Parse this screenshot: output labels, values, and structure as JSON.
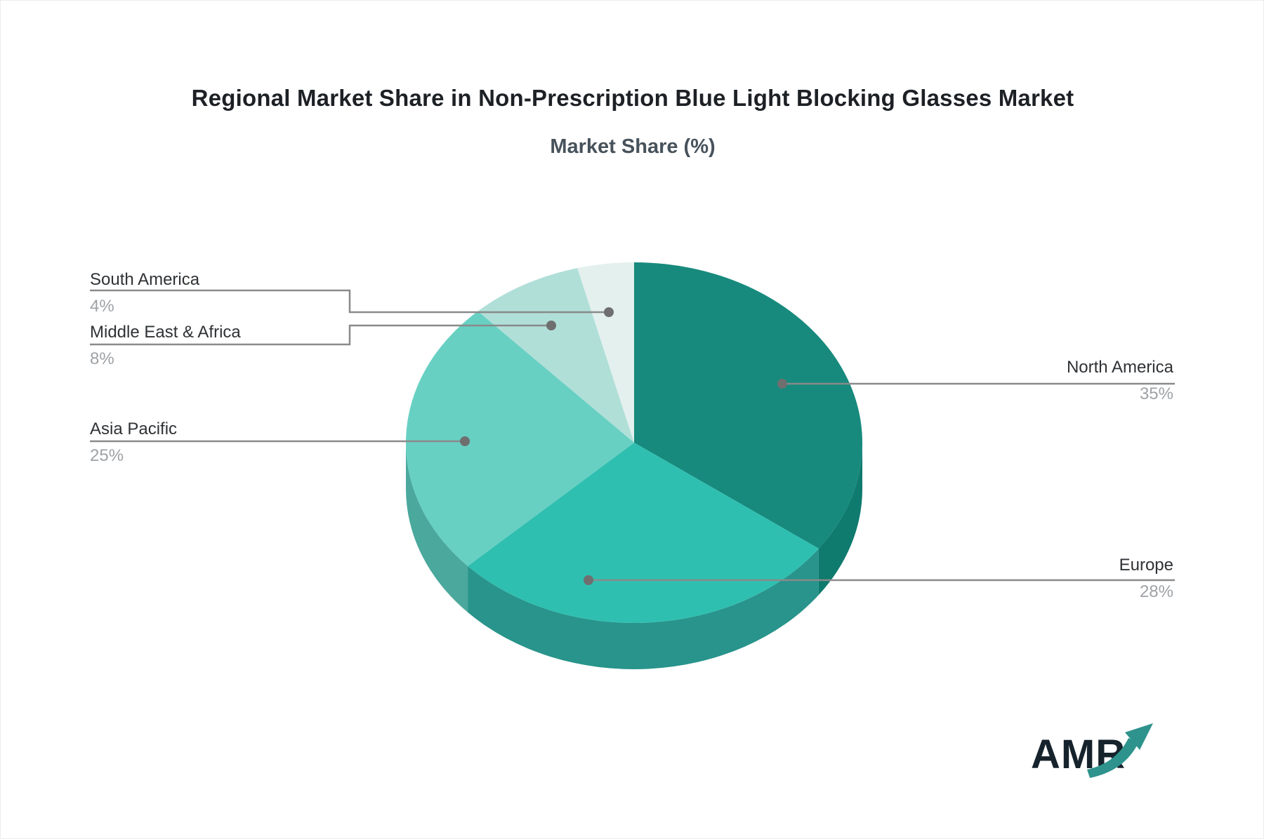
{
  "title": "Regional Market Share in Non-Prescription Blue Light Blocking Glasses Market",
  "subtitle": "Market Share (%)",
  "chart_data": {
    "type": "pie",
    "title": "Regional Market Share in Non-Prescription Blue Light Blocking Glasses Market",
    "subtitle": "Market Share (%)",
    "unit": "%",
    "effect": "3d",
    "start_angle_deg": 0,
    "direction": "clockwise",
    "legend_position": "callout-labels",
    "slices": [
      {
        "label": "North America",
        "value": 35,
        "display": "35%",
        "color": "#178A7D",
        "rim_color": "#0F7A6E",
        "label_side": "right"
      },
      {
        "label": "Europe",
        "value": 28,
        "display": "28%",
        "color": "#2FBFB0",
        "rim_color": "#28948B",
        "label_side": "right"
      },
      {
        "label": "Asia Pacific",
        "value": 25,
        "display": "25%",
        "color": "#67D0C3",
        "rim_color": "#4BA89C",
        "label_side": "left"
      },
      {
        "label": "Middle East & Africa",
        "value": 8,
        "display": "8%",
        "color": "#B0DFD8",
        "rim_color": "#8FC9C0",
        "label_side": "left"
      },
      {
        "label": "South America",
        "value": 4,
        "display": "4%",
        "color": "#E3F0EE",
        "rim_color": "#C2DDD9",
        "label_side": "left"
      }
    ],
    "leader_line_color": "#8A8A8A",
    "leader_dot_color": "#6F6F6F",
    "label_text_color": "#2F3235",
    "percent_text_color": "#9EA2A6"
  },
  "logo": {
    "text": "AMR",
    "text_color": "#16232C",
    "arrow_color": "#2E938C"
  }
}
